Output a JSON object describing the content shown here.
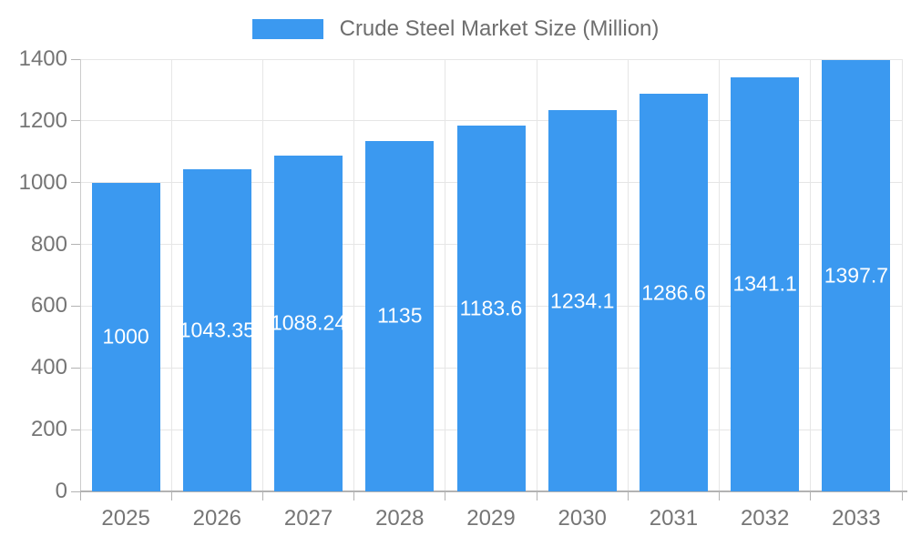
{
  "legend": {
    "label": "Crude Steel Market Size (Million)",
    "swatch_color": "#3b99f0"
  },
  "chart_data": {
    "type": "bar",
    "title": "Crude Steel Market Size (Million)",
    "categories": [
      "2025",
      "2026",
      "2027",
      "2028",
      "2029",
      "2030",
      "2031",
      "2032",
      "2033"
    ],
    "values": [
      1000,
      1043.35,
      1088.24,
      1135,
      1183.6,
      1234.1,
      1286.6,
      1341.1,
      1397.7
    ],
    "bar_labels": [
      "1000",
      "1043.35",
      "1088.24",
      "1135",
      "1183.6",
      "1234.1",
      "1286.6",
      "1341.1",
      "1397.7"
    ],
    "xlabel": "",
    "ylabel": "",
    "ylim": [
      0,
      1400
    ],
    "ytick_interval": 200,
    "yticks": [
      "0",
      "200",
      "400",
      "600",
      "800",
      "1000",
      "1200",
      "1400"
    ],
    "grid": true,
    "legend_position": "top",
    "bar_color": "#3b99f0",
    "bar_label_color": "#ffffff",
    "axis_text_color": "#757575",
    "gridline_color": "#e6e6e6",
    "axis_line_color": "#b3b3b3"
  }
}
